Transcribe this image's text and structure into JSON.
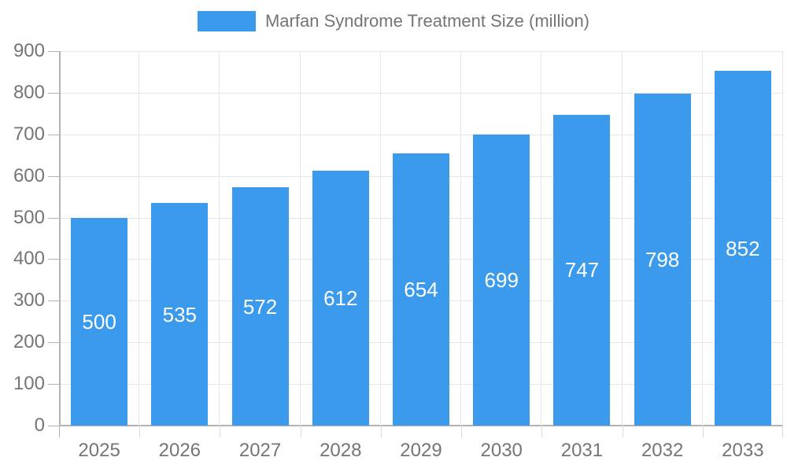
{
  "legend": {
    "label": "Marfan Syndrome Treatment Size (million)"
  },
  "colors": {
    "bar": "#3c9aec",
    "axis_line": "#b3b3b3",
    "grid_line": "#e6e6e6",
    "tick_text": "#757575",
    "value_label": "#ffffff",
    "background": "#ffffff"
  },
  "chart_data": {
    "type": "bar",
    "title": "",
    "categories": [
      "2025",
      "2026",
      "2027",
      "2028",
      "2029",
      "2030",
      "2031",
      "2032",
      "2033"
    ],
    "series": [
      {
        "name": "Marfan Syndrome Treatment Size (million)",
        "values": [
          500,
          535,
          572,
          612,
          654,
          699,
          747,
          798,
          852
        ]
      }
    ],
    "xlabel": "",
    "ylabel": "",
    "ylim": [
      0,
      900
    ],
    "ytick_interval": 100,
    "ytick_labels": [
      "0",
      "100",
      "200",
      "300",
      "400",
      "500",
      "600",
      "700",
      "800",
      "900"
    ],
    "grid": true,
    "legend_position": "top-center",
    "value_labels": "white, centered inside bars"
  }
}
